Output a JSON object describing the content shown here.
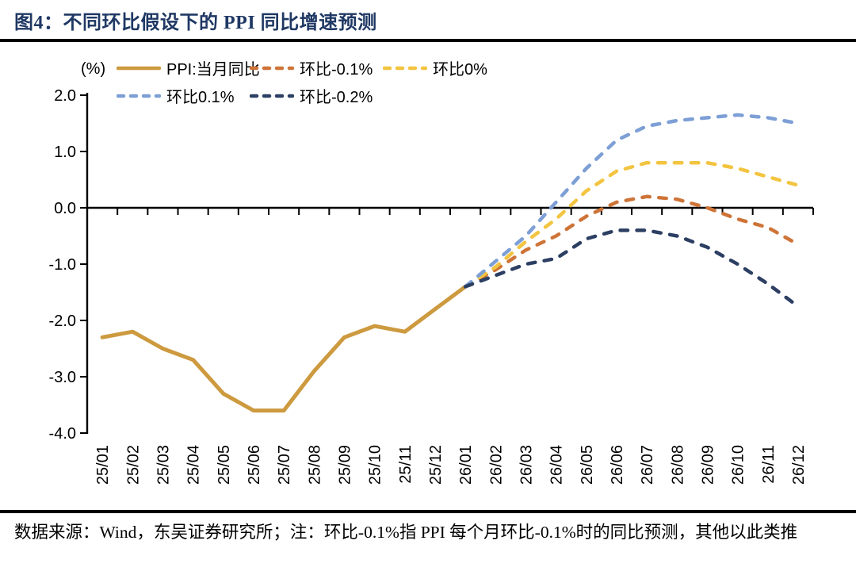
{
  "page": {
    "title": "图4：不同环比假设下的 PPI 同比增速预测",
    "source_note": "数据来源：Wind，东吴证券研究所；注：环比-0.1%指 PPI 每个月环比-0.1%时的同比预测，其他以此类推"
  },
  "chart_data": {
    "type": "line",
    "title": "不同环比假设下的 PPI 同比增速预测",
    "unit_label": "(%)",
    "ylabel": "(%)",
    "xlabel": "",
    "ylim": [
      -4.0,
      2.0
    ],
    "y_ticks": [
      2.0,
      1.0,
      0.0,
      -1.0,
      -2.0,
      -3.0,
      -4.0
    ],
    "grid": false,
    "legend_position": "top",
    "categories": [
      "25/01",
      "25/02",
      "25/03",
      "25/04",
      "25/05",
      "25/06",
      "25/07",
      "25/08",
      "25/09",
      "25/10",
      "25/11",
      "25/12",
      "26/01",
      "26/02",
      "26/03",
      "26/04",
      "26/05",
      "26/06",
      "26/07",
      "26/08",
      "26/09",
      "26/10",
      "26/11",
      "26/12"
    ],
    "series": [
      {
        "name": "PPI:当月同比",
        "style": "solid",
        "color": "#CD9A3F",
        "values": [
          -2.3,
          -2.2,
          -2.5,
          -2.7,
          -3.3,
          -3.6,
          -3.6,
          -2.9,
          -2.3,
          -2.1,
          -2.2,
          -1.8,
          -1.4,
          null,
          null,
          null,
          null,
          null,
          null,
          null,
          null,
          null,
          null,
          null
        ]
      },
      {
        "name": "环比-0.1%",
        "style": "dashed",
        "color": "#CE7438",
        "values": [
          null,
          null,
          null,
          null,
          null,
          null,
          null,
          null,
          null,
          null,
          null,
          null,
          -1.4,
          -1.1,
          -0.75,
          -0.5,
          -0.15,
          0.1,
          0.2,
          0.15,
          0.0,
          -0.2,
          -0.35,
          -0.65
        ]
      },
      {
        "name": "环比0%",
        "style": "dashed",
        "color": "#F3C440",
        "values": [
          null,
          null,
          null,
          null,
          null,
          null,
          null,
          null,
          null,
          null,
          null,
          null,
          -1.4,
          -1.05,
          -0.6,
          -0.2,
          0.3,
          0.65,
          0.8,
          0.8,
          0.8,
          0.7,
          0.55,
          0.4
        ]
      },
      {
        "name": "环比0.1%",
        "style": "dashed",
        "color": "#7D9FD6",
        "values": [
          null,
          null,
          null,
          null,
          null,
          null,
          null,
          null,
          null,
          null,
          null,
          null,
          -1.4,
          -0.95,
          -0.5,
          0.1,
          0.7,
          1.2,
          1.45,
          1.55,
          1.6,
          1.65,
          1.6,
          1.5
        ]
      },
      {
        "name": "环比-0.2%",
        "style": "dashed",
        "color": "#2C3F63",
        "values": [
          null,
          null,
          null,
          null,
          null,
          null,
          null,
          null,
          null,
          null,
          null,
          null,
          -1.4,
          -1.2,
          -1.0,
          -0.9,
          -0.55,
          -0.4,
          -0.4,
          -0.5,
          -0.7,
          -1.0,
          -1.35,
          -1.75
        ]
      }
    ],
    "legend_layout": [
      [
        "PPI:当月同比",
        "环比-0.1%",
        "环比0%"
      ],
      [
        "环比0.1%",
        "环比-0.2%"
      ]
    ]
  }
}
